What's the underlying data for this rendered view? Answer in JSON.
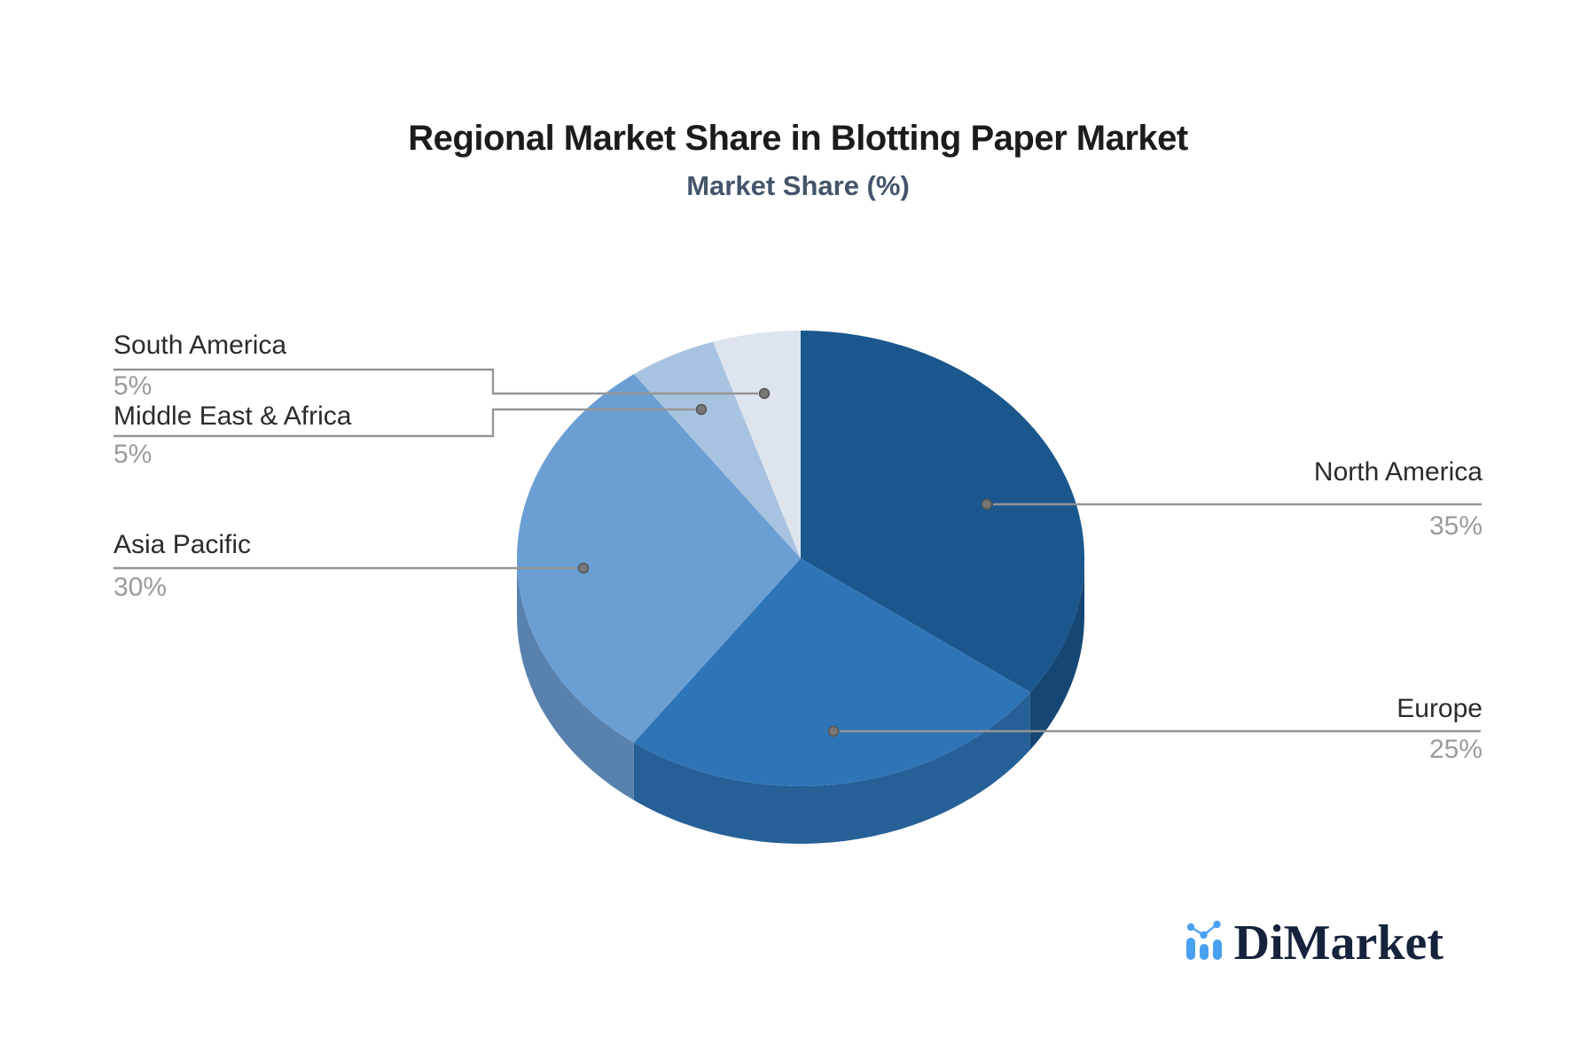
{
  "chart_data": {
    "type": "pie",
    "title": "Regional Market Share in Blotting Paper Market",
    "subtitle": "Market Share (%)",
    "unit": "%",
    "effect": "3d",
    "direction": "clockwise",
    "rotation_start_deg": 0,
    "legend_position": "callout-labels",
    "labels": [
      "North America",
      "Europe",
      "Asia Pacific",
      "Middle East & Africa",
      "South America"
    ],
    "values": [
      35,
      25,
      30,
      5,
      5
    ],
    "colors": [
      "#1b578d",
      "#2e75b8",
      "#6b9ed3",
      "#a8c3df",
      "#dee4ee"
    ]
  },
  "callouts": [
    {
      "label": "North America",
      "value_text": "35%"
    },
    {
      "label": "Europe",
      "value_text": "25%"
    },
    {
      "label": "Asia Pacific",
      "value_text": "30%"
    },
    {
      "label": "Middle East & Africa",
      "value_text": "5%"
    },
    {
      "label": "South America",
      "value_text": "5%"
    }
  ],
  "branding": {
    "logo_text": "DiMarket",
    "logo_icon": "bar-chart-logo-icon"
  },
  "style_colors": {
    "title": "#1c1c1c",
    "subtitle": "#44546a",
    "label_text": "#2b2b2b",
    "percent_text": "#9b9b9b",
    "leader_line": "#959595",
    "logo_blue": "#4aa0f0",
    "logo_navy": "#16233c"
  }
}
